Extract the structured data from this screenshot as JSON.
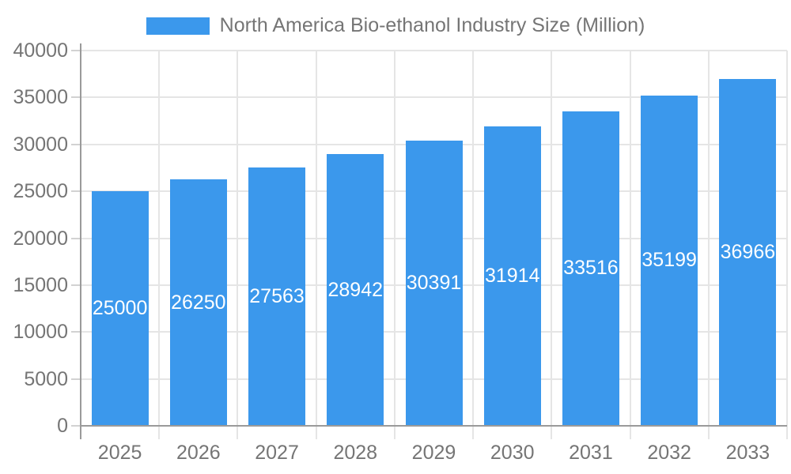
{
  "chart_data": {
    "type": "bar",
    "title": "North America Bio-ethanol Industry Size (Million)",
    "categories": [
      "2025",
      "2026",
      "2027",
      "2028",
      "2029",
      "2030",
      "2031",
      "2032",
      "2033"
    ],
    "series": [
      {
        "name": "North America Bio-ethanol Industry Size (Million)",
        "values": [
          25000,
          26250,
          27563,
          28942,
          30391,
          31914,
          33516,
          35199,
          36966
        ]
      }
    ],
    "value_labels": [
      25000,
      26250,
      27563,
      28942,
      30391,
      31914,
      33516,
      35199,
      36966
    ],
    "xlabel": "",
    "ylabel": "",
    "ylim": [
      0,
      40000
    ],
    "yticks": [
      0,
      5000,
      10000,
      15000,
      20000,
      25000,
      30000,
      35000,
      40000
    ],
    "grid": true,
    "legend_position": "top",
    "colors": {
      "bar": "#3b98ec",
      "grid": "#e5e5e5",
      "axis": "#9a9a9a",
      "tick": "#d2d2d2",
      "tick_text": "#757575",
      "value_label": "#ffffff",
      "background": "#ffffff"
    }
  }
}
